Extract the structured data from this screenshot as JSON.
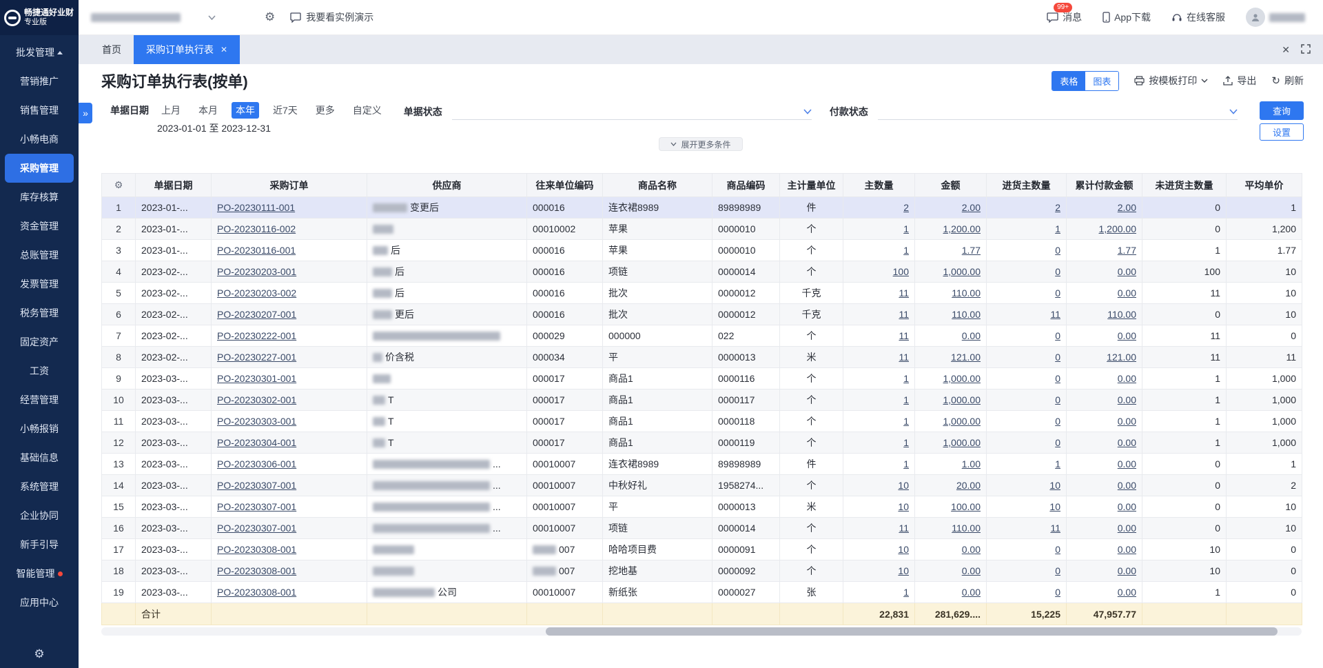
{
  "accent": "#2e77f0",
  "topbar": {
    "logo_title": "畅捷通好业财",
    "logo_subtitle": "专业版",
    "demo_link": "我要看实例演示",
    "messages_label": "消息",
    "messages_badge": "99+",
    "app_download_label": "App下载",
    "support_label": "在线客服"
  },
  "tabs": {
    "home": "首页",
    "current": "采购订单执行表"
  },
  "toolbar": {
    "page_title": "采购订单执行表(按单)",
    "view_table": "表格",
    "view_chart": "图表",
    "print_label": "按模板打印",
    "export_label": "导出",
    "refresh_label": "刷新"
  },
  "filters": {
    "date_label": "单据日期",
    "date_options": [
      "上月",
      "本月",
      "本年",
      "近7天",
      "更多",
      "自定义"
    ],
    "date_selected": "本年",
    "date_range": "2023-01-01 至 2023-12-31",
    "doc_status_label": "单据状态",
    "pay_status_label": "付款状态",
    "expand_more": "展开更多条件",
    "query": "查询",
    "settings": "设置"
  },
  "sidebar": {
    "items": [
      {
        "label": "批发管理",
        "expanded": true
      },
      {
        "label": "营销推广"
      },
      {
        "label": "销售管理"
      },
      {
        "label": "小畅电商"
      },
      {
        "label": "采购管理",
        "active": true
      },
      {
        "label": "库存核算"
      },
      {
        "label": "资金管理"
      },
      {
        "label": "总账管理"
      },
      {
        "label": "发票管理"
      },
      {
        "label": "税务管理"
      },
      {
        "label": "固定资产"
      },
      {
        "label": "工资"
      },
      {
        "label": "经营管理"
      },
      {
        "label": "小畅报销"
      },
      {
        "label": "基础信息"
      },
      {
        "label": "系统管理"
      },
      {
        "label": "企业协同"
      },
      {
        "label": "新手引导"
      },
      {
        "label": "智能管理",
        "dot": true
      },
      {
        "label": "应用中心"
      }
    ]
  },
  "table": {
    "headers": [
      "单据日期",
      "采购订单",
      "供应商",
      "往来单位编码",
      "商品名称",
      "商品编码",
      "主计量单位",
      "主数量",
      "金额",
      "进货主数量",
      "累计付款金额",
      "未进货主数量",
      "平均单价"
    ],
    "rows": [
      {
        "n": "1",
        "date": "2023-01-...",
        "po": "PO-20230111-001",
        "supb": 50,
        "sup": "变更后",
        "code": "000016",
        "prod": "连衣裙8989",
        "pcode": "89898989",
        "unit": "件",
        "qty": "2",
        "amt": "2.00",
        "inq": "2",
        "paid": "2.00",
        "notin": "0",
        "avg": "1",
        "sel": true
      },
      {
        "n": "2",
        "date": "2023-01-...",
        "po": "PO-20230116-002",
        "supb": 30,
        "sup": "",
        "code": "00010002",
        "prod": "苹果",
        "pcode": "0000010",
        "unit": "个",
        "qty": "1",
        "amt": "1,200.00",
        "inq": "1",
        "paid": "1,200.00",
        "notin": "0",
        "avg": "1,200"
      },
      {
        "n": "3",
        "date": "2023-01-...",
        "po": "PO-20230116-001",
        "supb": 22,
        "sup": "后",
        "code": "000016",
        "prod": "苹果",
        "pcode": "0000010",
        "unit": "个",
        "qty": "1",
        "amt": "1.77",
        "inq": "0",
        "paid": "1.77",
        "notin": "1",
        "avg": "1.77"
      },
      {
        "n": "4",
        "date": "2023-02-...",
        "po": "PO-20230203-001",
        "supb": 28,
        "sup": "后",
        "code": "000016",
        "prod": "项链",
        "pcode": "0000014",
        "unit": "个",
        "qty": "100",
        "amt": "1,000.00",
        "inq": "0",
        "paid": "0.00",
        "notin": "100",
        "avg": "10"
      },
      {
        "n": "5",
        "date": "2023-02-...",
        "po": "PO-20230203-002",
        "supb": 28,
        "sup": "后",
        "code": "000016",
        "prod": "批次",
        "pcode": "0000012",
        "unit": "千克",
        "qty": "11",
        "amt": "110.00",
        "inq": "0",
        "paid": "0.00",
        "notin": "11",
        "avg": "10"
      },
      {
        "n": "6",
        "date": "2023-02-...",
        "po": "PO-20230207-001",
        "supb": 28,
        "sup": "更后",
        "code": "000016",
        "prod": "批次",
        "pcode": "0000012",
        "unit": "千克",
        "qty": "11",
        "amt": "110.00",
        "inq": "11",
        "paid": "110.00",
        "notin": "0",
        "avg": "10"
      },
      {
        "n": "7",
        "date": "2023-02-...",
        "po": "PO-20230222-001",
        "supb": 185,
        "sup": "",
        "code": "000029",
        "prod": "000000",
        "pcode": "022",
        "unit": "个",
        "qty": "11",
        "amt": "0.00",
        "inq": "0",
        "paid": "0.00",
        "notin": "11",
        "avg": "0"
      },
      {
        "n": "8",
        "date": "2023-02-...",
        "po": "PO-20230227-001",
        "supb": 14,
        "sup": "价含税",
        "code": "000034",
        "prod": "平",
        "pcode": "0000013",
        "unit": "米",
        "qty": "11",
        "amt": "121.00",
        "inq": "0",
        "paid": "121.00",
        "notin": "11",
        "avg": "11"
      },
      {
        "n": "9",
        "date": "2023-03-...",
        "po": "PO-20230301-001",
        "supb": 26,
        "sup": "",
        "code": "000017",
        "prod": "商品1",
        "pcode": "0000116",
        "unit": "个",
        "qty": "1",
        "amt": "1,000.00",
        "inq": "0",
        "paid": "0.00",
        "notin": "1",
        "avg": "1,000"
      },
      {
        "n": "10",
        "date": "2023-03-...",
        "po": "PO-20230302-001",
        "supb": 18,
        "sup": "T",
        "code": "000017",
        "prod": "商品1",
        "pcode": "0000117",
        "unit": "个",
        "qty": "1",
        "amt": "1,000.00",
        "inq": "0",
        "paid": "0.00",
        "notin": "1",
        "avg": "1,000"
      },
      {
        "n": "11",
        "date": "2023-03-...",
        "po": "PO-20230303-001",
        "supb": 18,
        "sup": "T",
        "code": "000017",
        "prod": "商品1",
        "pcode": "0000118",
        "unit": "个",
        "qty": "1",
        "amt": "1,000.00",
        "inq": "0",
        "paid": "0.00",
        "notin": "1",
        "avg": "1,000"
      },
      {
        "n": "12",
        "date": "2023-03-...",
        "po": "PO-20230304-001",
        "supb": 18,
        "sup": "T",
        "code": "000017",
        "prod": "商品1",
        "pcode": "0000119",
        "unit": "个",
        "qty": "1",
        "amt": "1,000.00",
        "inq": "0",
        "paid": "0.00",
        "notin": "1",
        "avg": "1,000"
      },
      {
        "n": "13",
        "date": "2023-03-...",
        "po": "PO-20230306-001",
        "supb": 170,
        "sup": "...",
        "code": "00010007",
        "prod": "连衣裙8989",
        "pcode": "89898989",
        "unit": "件",
        "qty": "1",
        "amt": "1.00",
        "inq": "1",
        "paid": "0.00",
        "notin": "0",
        "avg": "1"
      },
      {
        "n": "14",
        "date": "2023-03-...",
        "po": "PO-20230307-001",
        "supb": 170,
        "sup": "...",
        "code": "00010007",
        "prod": "中秋好礼",
        "pcode": "1958274...",
        "unit": "个",
        "qty": "10",
        "amt": "20.00",
        "inq": "10",
        "paid": "0.00",
        "notin": "0",
        "avg": "2"
      },
      {
        "n": "15",
        "date": "2023-03-...",
        "po": "PO-20230307-001",
        "supb": 170,
        "sup": "...",
        "code": "00010007",
        "prod": "平",
        "pcode": "0000013",
        "unit": "米",
        "qty": "10",
        "amt": "100.00",
        "inq": "10",
        "paid": "0.00",
        "notin": "0",
        "avg": "10"
      },
      {
        "n": "16",
        "date": "2023-03-...",
        "po": "PO-20230307-001",
        "supb": 170,
        "sup": "...",
        "code": "00010007",
        "prod": "项链",
        "pcode": "0000014",
        "unit": "个",
        "qty": "11",
        "amt": "110.00",
        "inq": "11",
        "paid": "0.00",
        "notin": "0",
        "avg": "10"
      },
      {
        "n": "17",
        "date": "2023-03-...",
        "po": "PO-20230308-001",
        "supb": 60,
        "sup": "",
        "codeb": 34,
        "code": "007",
        "prod": "哈哈项目费",
        "pcode": "0000091",
        "unit": "个",
        "qty": "10",
        "amt": "0.00",
        "inq": "0",
        "paid": "0.00",
        "notin": "10",
        "avg": "0"
      },
      {
        "n": "18",
        "date": "2023-03-...",
        "po": "PO-20230308-001",
        "supb": 60,
        "sup": "",
        "codeb": 34,
        "code": "007",
        "prod": "挖地基",
        "pcode": "0000092",
        "unit": "个",
        "qty": "10",
        "amt": "0.00",
        "inq": "0",
        "paid": "0.00",
        "notin": "10",
        "avg": "0"
      },
      {
        "n": "19",
        "date": "2023-03-...",
        "po": "PO-20230308-001",
        "supb": 90,
        "sup": "公司",
        "code": "00010007",
        "prod": "新纸张",
        "pcode": "0000027",
        "unit": "张",
        "qty": "1",
        "amt": "0.00",
        "inq": "0",
        "paid": "0.00",
        "notin": "1",
        "avg": "0"
      }
    ],
    "footer": {
      "label": "合计",
      "qty": "22,831",
      "amt": "281,629....",
      "inq": "15,225",
      "paid": "47,957.77"
    }
  },
  "icons": {
    "gear": "⚙",
    "refresh": "↻",
    "close": "✕",
    "chevron_double": "»",
    "expand_chevron": "⌄"
  }
}
